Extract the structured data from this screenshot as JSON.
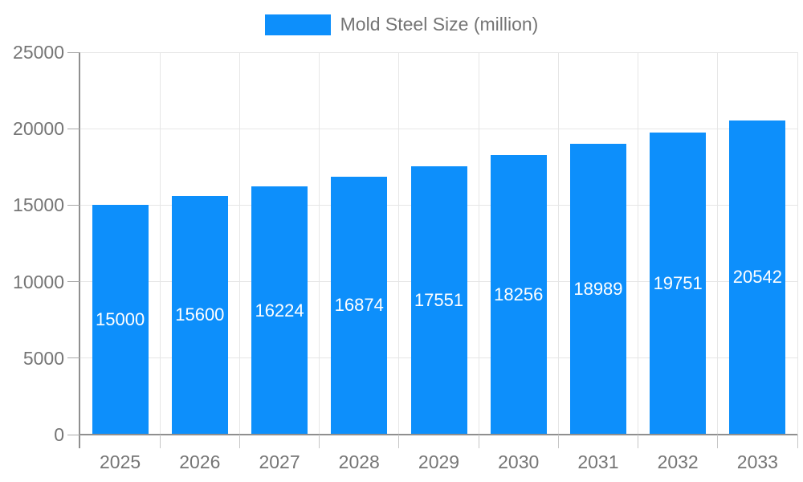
{
  "legend": {
    "label": "Mold Steel Size (million)"
  },
  "chart_data": {
    "type": "bar",
    "title": "Mold Steel Size (million)",
    "categories": [
      "2025",
      "2026",
      "2027",
      "2028",
      "2029",
      "2030",
      "2031",
      "2032",
      "2033"
    ],
    "series": [
      {
        "name": "Mold Steel Size (million)",
        "values": [
          15000,
          15600,
          16224,
          16874,
          17551,
          18256,
          18989,
          19751,
          20542
        ]
      }
    ],
    "xlabel": "",
    "ylabel": "",
    "ylim": [
      0,
      25000
    ],
    "yticks": [
      0,
      5000,
      10000,
      15000,
      20000,
      25000
    ],
    "grid": true,
    "legend_position": "top-center",
    "value_label_position": "inside-center"
  },
  "colors": {
    "bar": "#0d8ffb",
    "bar_value_label": "#ffffff",
    "axis_label": "#757575",
    "legend_text": "#757575",
    "gridline": "#e6e6e6",
    "axis_line": "#8f8f8f"
  }
}
